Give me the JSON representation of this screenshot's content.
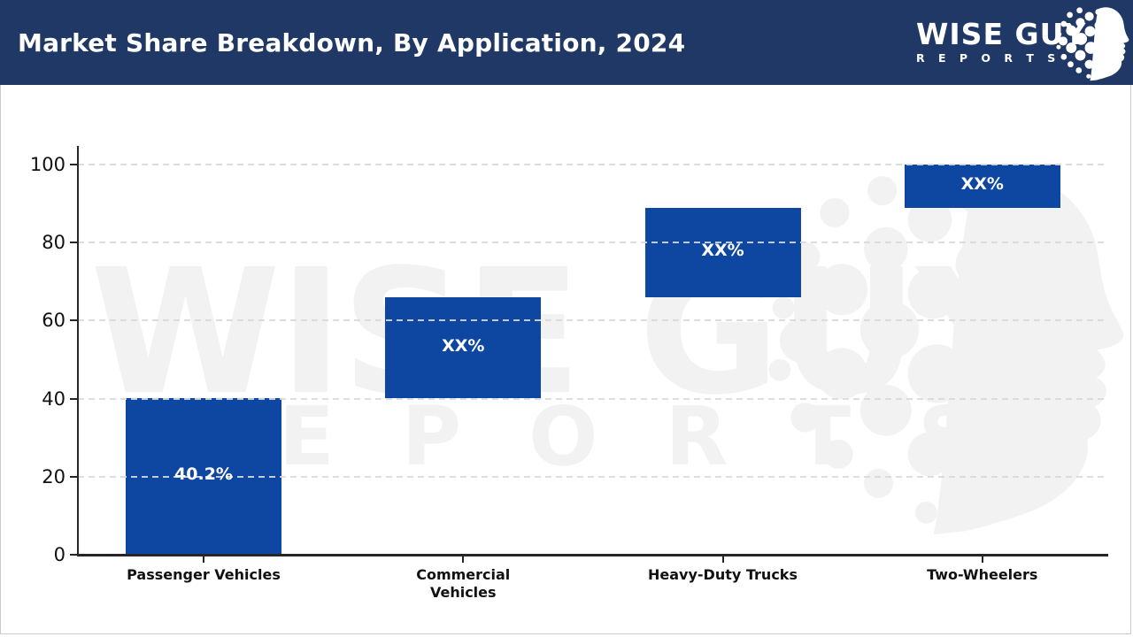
{
  "header": {
    "title": "Market Share Breakdown, By Application, 2024",
    "logo": {
      "name": "WISE GUY",
      "subtitle": "R E P O R T S"
    }
  },
  "watermark": {
    "line1": "WISE GUY",
    "line2": "R E P O R T S"
  },
  "chart_data": {
    "type": "bar",
    "subtype": "stepped-waterfall-market-share",
    "title": "Market Share Breakdown, By Application, 2024",
    "categories": [
      "Passenger Vehicles",
      "Commercial\nVehicles",
      "Heavy-Duty Trucks",
      "Two-Wheelers"
    ],
    "segments": [
      {
        "category": "Passenger Vehicles",
        "start": 0,
        "end": 40.2,
        "label": "40.2%"
      },
      {
        "category": "Commercial Vehicles",
        "start": 40.2,
        "end": 66,
        "label": "XX%"
      },
      {
        "category": "Heavy-Duty Trucks",
        "start": 66,
        "end": 89,
        "label": "XX%"
      },
      {
        "category": "Two-Wheelers",
        "start": 89,
        "end": 100,
        "label": "XX%"
      }
    ],
    "ylim": [
      0,
      100
    ],
    "yticks": [
      0,
      20,
      40,
      60,
      80,
      100
    ],
    "xlabel": "",
    "ylabel": "",
    "grid": "horizontal-dashed",
    "legend": "none",
    "bar_label_color": "#ffffff"
  },
  "colors": {
    "header_bg": "#1f3865",
    "header_fg": "#ffffff",
    "bar": "#0d47a1",
    "grid": "#d9d9d9",
    "axis": "#262626",
    "tick_label": "#111111",
    "watermark": "#f2f2f2",
    "frame": "#cbcbcb",
    "page_bg": "#ffffff"
  }
}
